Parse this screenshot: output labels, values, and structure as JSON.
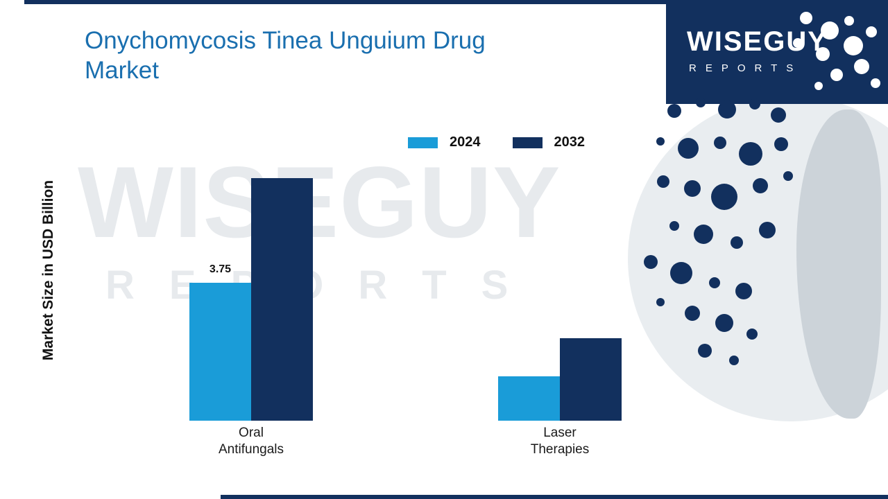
{
  "header": {
    "title": "Onychomycosis Tinea Unguium Drug Market"
  },
  "logo": {
    "line1": "WISEGUY",
    "line2": "REPORTS"
  },
  "watermark": {
    "line1": "WISEGUY",
    "line2": "REPORTS"
  },
  "legend": [
    {
      "label": "2024",
      "color": "#1A9CD8"
    },
    {
      "label": "2032",
      "color": "#12305E"
    }
  ],
  "chart_data": {
    "type": "bar",
    "title": "Onychomycosis Tinea Unguium Drug Market",
    "xlabel": "",
    "ylabel": "Market Size in USD Billion",
    "units": "USD Billion",
    "categories": [
      "Oral Antifungals",
      "Laser Therapies"
    ],
    "series": [
      {
        "name": "2024",
        "color": "#1A9CD8",
        "values": [
          3.75,
          1.2
        ],
        "labels": [
          "3.75",
          ""
        ]
      },
      {
        "name": "2032",
        "color": "#12305E",
        "values": [
          6.6,
          2.25
        ],
        "labels": [
          "",
          ""
        ]
      }
    ],
    "ylim": [
      0,
      7
    ],
    "grid": false,
    "legend_position": "top-right"
  },
  "colors": {
    "accent_blue": "#1A9CD8",
    "navy": "#12305E",
    "title_blue": "#1A6FAF",
    "watermark_gray": "#E7EAED",
    "background": "#FFFFFF"
  }
}
